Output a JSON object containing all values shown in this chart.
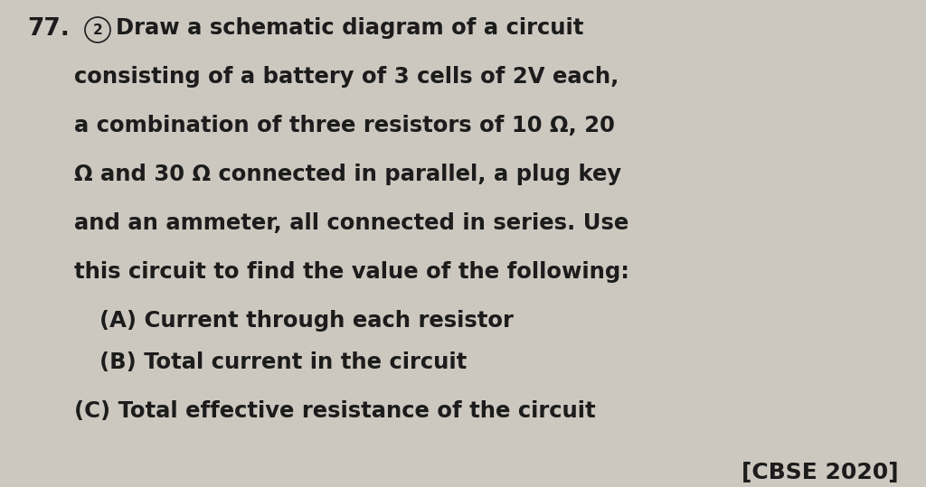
{
  "background_color": "#ccc8c0",
  "question_number": "77.",
  "circle_label": "2",
  "line1": "Draw a schematic diagram of a circuit",
  "line2": "consisting of a battery of 3 cells of 2V each,",
  "line3": "a combination of three resistors of 10 Ω, 20",
  "line4": "Ω and 30 Ω connected in parallel, a plug key",
  "line5": "and an ammeter, all connected in series. Use",
  "line6": "this circuit to find the value of the following:",
  "sub_a": "(A) Current through each resistor",
  "sub_b": "(B) Total current in the circuit",
  "sub_c": "(C) Total effective resistance of the circuit",
  "citation": "[CBSE 2020]",
  "text_color": "#1c1c1c",
  "font_size_main": 17.5,
  "font_size_number": 19,
  "font_size_citation": 18
}
